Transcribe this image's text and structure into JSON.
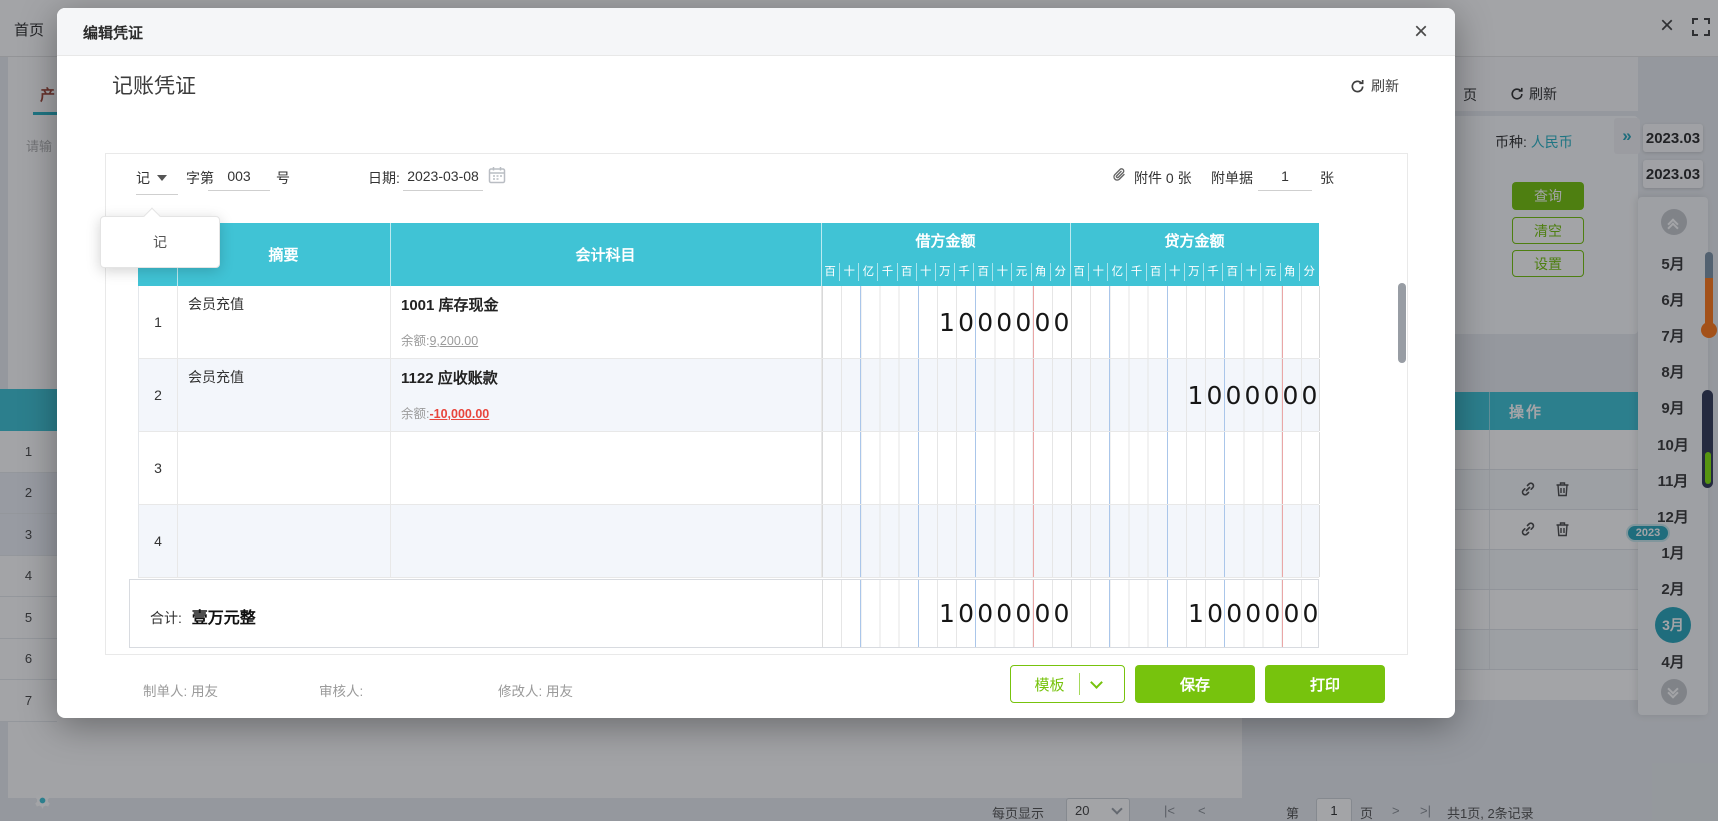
{
  "colors": {
    "teal": "#40c3d5",
    "green": "#77c30d",
    "red": "#e8453c",
    "link_teal": "#2bb3c5"
  },
  "background": {
    "topbar": {
      "home": "首页"
    },
    "left": {
      "tab_fragment": "产",
      "input_fragment": "请输",
      "row_numbers": [
        "1",
        "2",
        "3",
        "4",
        "5",
        "6",
        "7"
      ]
    },
    "right": {
      "page_fragment": "页",
      "refresh_label": "刷新",
      "currency_label": "币种:",
      "currency_value": "人民币",
      "query_button": "查询",
      "clear_button": "清空",
      "settings_button": "设置",
      "ops_header": "操作",
      "jump_icon": "»",
      "year_boxes": [
        "2023.03",
        "2023.03"
      ],
      "year_badge": "2023",
      "months": [
        "5月",
        "6月",
        "7月",
        "8月",
        "9月",
        "10月",
        "11月",
        "12月",
        "1月",
        "2月",
        "3月",
        "4月"
      ]
    },
    "pagination": {
      "per_page_label": "每页显示",
      "per_page_value": "20",
      "first": "|<",
      "prev": "<",
      "next": ">",
      "last": ">|",
      "page_label_pre": "第",
      "page_value": "1",
      "page_label_post": "页",
      "summary": "共1页, 2条记录"
    }
  },
  "modal": {
    "title": "编辑凭证",
    "close": "×",
    "refresh_label": "刷新",
    "voucher_title": "记账凭证",
    "meta": {
      "word": "记",
      "word_label": "字第",
      "number": "003",
      "number_suffix": "号",
      "date_label": "日期:",
      "date": "2023-03-08",
      "attachment_label": "附件 0 张",
      "receipts_label": "附单据",
      "receipts_value": "1",
      "receipts_unit": "张"
    },
    "dropdown": {
      "option": "记"
    },
    "table": {
      "headers": {
        "summary": "摘要",
        "account": "会计科目",
        "debit": "借方金额",
        "credit": "贷方金额"
      },
      "units": [
        "百",
        "十",
        "亿",
        "千",
        "百",
        "十",
        "万",
        "千",
        "百",
        "十",
        "元",
        "角",
        "分"
      ],
      "rows": [
        {
          "no": "1",
          "summary": "会员充值",
          "account": "1001 库存现金",
          "balance_label": "余额:",
          "balance": "9,200.00",
          "debit": [
            "",
            "",
            "",
            "",
            "",
            "",
            "1",
            "0",
            "0",
            "0",
            "0",
            "0",
            "0"
          ],
          "credit": [
            "",
            "",
            "",
            "",
            "",
            "",
            "",
            "",
            "",
            "",
            "",
            "",
            ""
          ]
        },
        {
          "no": "2",
          "summary": "会员充值",
          "account": "1122 应收账款",
          "balance_label": "余额:",
          "balance": "-10,000.00",
          "debit": [
            "",
            "",
            "",
            "",
            "",
            "",
            "",
            "",
            "",
            "",
            "",
            "",
            ""
          ],
          "credit": [
            "",
            "",
            "",
            "",
            "",
            "",
            "1",
            "0",
            "0",
            "0",
            "0",
            "0",
            "0"
          ]
        },
        {
          "no": "3",
          "summary": "",
          "account": "",
          "balance_label": "",
          "balance": "",
          "debit": [
            "",
            "",
            "",
            "",
            "",
            "",
            "",
            "",
            "",
            "",
            "",
            "",
            ""
          ],
          "credit": [
            "",
            "",
            "",
            "",
            "",
            "",
            "",
            "",
            "",
            "",
            "",
            "",
            ""
          ]
        },
        {
          "no": "4",
          "summary": "",
          "account": "",
          "balance_label": "",
          "balance": "",
          "debit": [
            "",
            "",
            "",
            "",
            "",
            "",
            "",
            "",
            "",
            "",
            "",
            "",
            ""
          ],
          "credit": [
            "",
            "",
            "",
            "",
            "",
            "",
            "",
            "",
            "",
            "",
            "",
            "",
            ""
          ]
        }
      ],
      "total": {
        "label": "合计:",
        "amount_text": "壹万元整",
        "debit": [
          "",
          "",
          "",
          "",
          "",
          "",
          "1",
          "0",
          "0",
          "0",
          "0",
          "0",
          "0"
        ],
        "credit": [
          "",
          "",
          "",
          "",
          "",
          "",
          "1",
          "0",
          "0",
          "0",
          "0",
          "0",
          "0"
        ]
      }
    },
    "footer": {
      "creator_label": "制单人:",
      "creator": "用友",
      "auditor_label": "审核人:",
      "auditor": "",
      "modifier_label": "修改人:",
      "modifier": "用友",
      "template_button": "模板",
      "save_button": "保存",
      "print_button": "打印"
    }
  }
}
